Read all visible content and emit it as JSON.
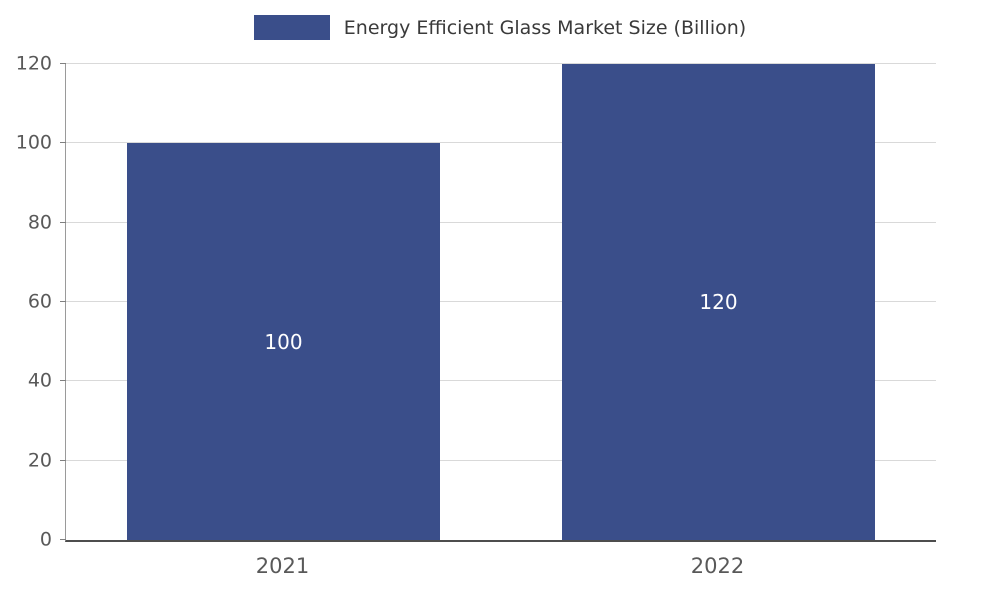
{
  "chart_data": {
    "type": "bar",
    "title": "",
    "legend_label": "Energy Efficient Glass Market Size (Billion)",
    "legend_position": "top",
    "categories": [
      "2021",
      "2022"
    ],
    "values": [
      100,
      120
    ],
    "value_labels": [
      "100",
      "120"
    ],
    "xlabel": "",
    "ylabel": "",
    "ylim": [
      0,
      120
    ],
    "yticks": [
      0,
      20,
      40,
      60,
      80,
      100,
      120
    ],
    "grid": true,
    "bar_width_fraction": 0.72,
    "colors": {
      "bar": "#3a4e8a",
      "grid": "#d9d9d9",
      "axis_line": "#4d4d4d",
      "tick_text": "#595959",
      "bar_label_text": "#ffffff",
      "legend_text": "#3a3a3a",
      "background": "#ffffff"
    }
  }
}
